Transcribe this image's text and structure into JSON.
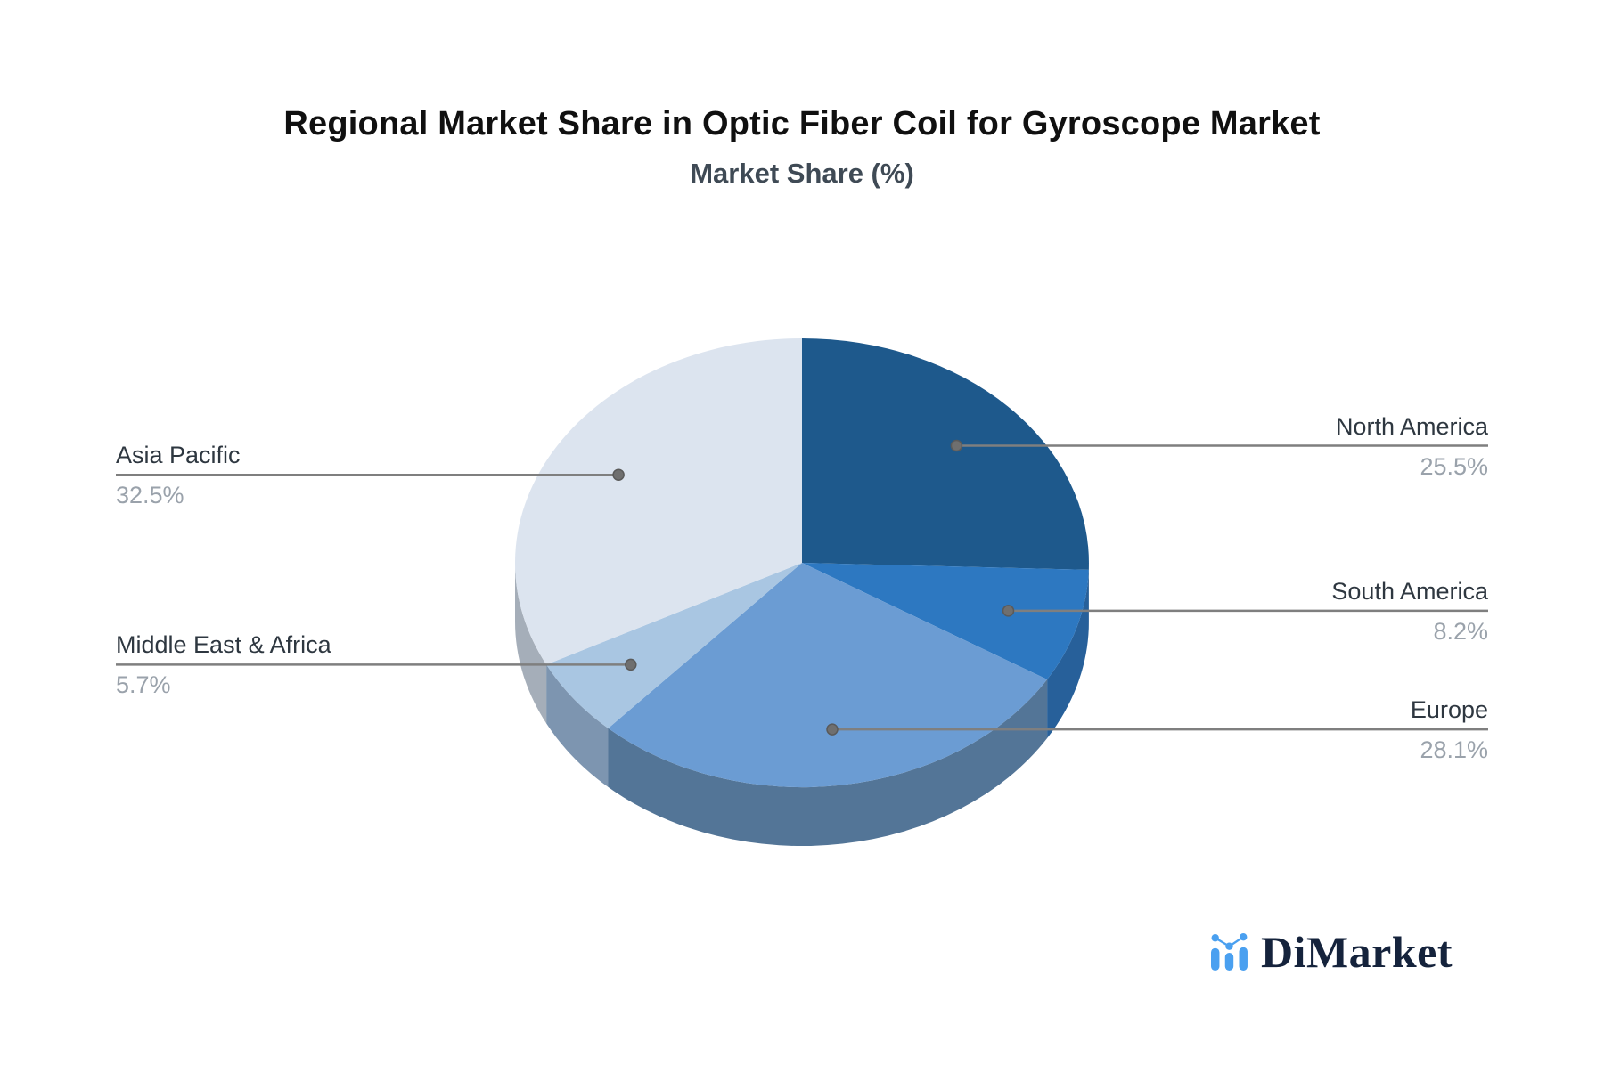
{
  "header": {
    "title": "Regional Market Share in Optic Fiber Coil for Gyroscope Market",
    "subtitle": "Market Share (%)"
  },
  "chart_data": {
    "type": "pie",
    "title": "Regional Market Share in Optic Fiber Coil for Gyroscope Market",
    "subtitle": "Market Share (%)",
    "unit": "%",
    "style": "3d-pie",
    "start_angle_deg": 0,
    "direction": "clockwise",
    "legend_position": "none",
    "slices": [
      {
        "label": "North America",
        "value": 25.5,
        "display": "25.5%",
        "color": "#1e598c",
        "side_color": "#164469",
        "label_side": "right"
      },
      {
        "label": "South America",
        "value": 8.2,
        "display": "8.2%",
        "color": "#2d78c1",
        "side_color": "#27609a",
        "label_side": "right"
      },
      {
        "label": "Europe",
        "value": 28.1,
        "display": "28.1%",
        "color": "#6b9cd3",
        "side_color": "#537597",
        "label_side": "right"
      },
      {
        "label": "Middle East & Africa",
        "value": 5.7,
        "display": "5.7%",
        "color": "#a9c6e2",
        "side_color": "#7d95b0",
        "label_side": "left"
      },
      {
        "label": "Asia Pacific",
        "value": 32.5,
        "display": "32.5%",
        "color": "#dce4ef",
        "side_color": "#a5aeb9",
        "label_side": "left"
      }
    ],
    "colors": {
      "leader_line": "#7f7f7f",
      "leader_dot": "#6f6f6f",
      "label_text": "#2e3740",
      "percent_text": "#9aa2ab"
    }
  },
  "logo": {
    "text": "DiMarket",
    "icon": "bar-chart-logo-icon",
    "icon_color": "#4aa0f0",
    "text_color": "#15233c"
  }
}
